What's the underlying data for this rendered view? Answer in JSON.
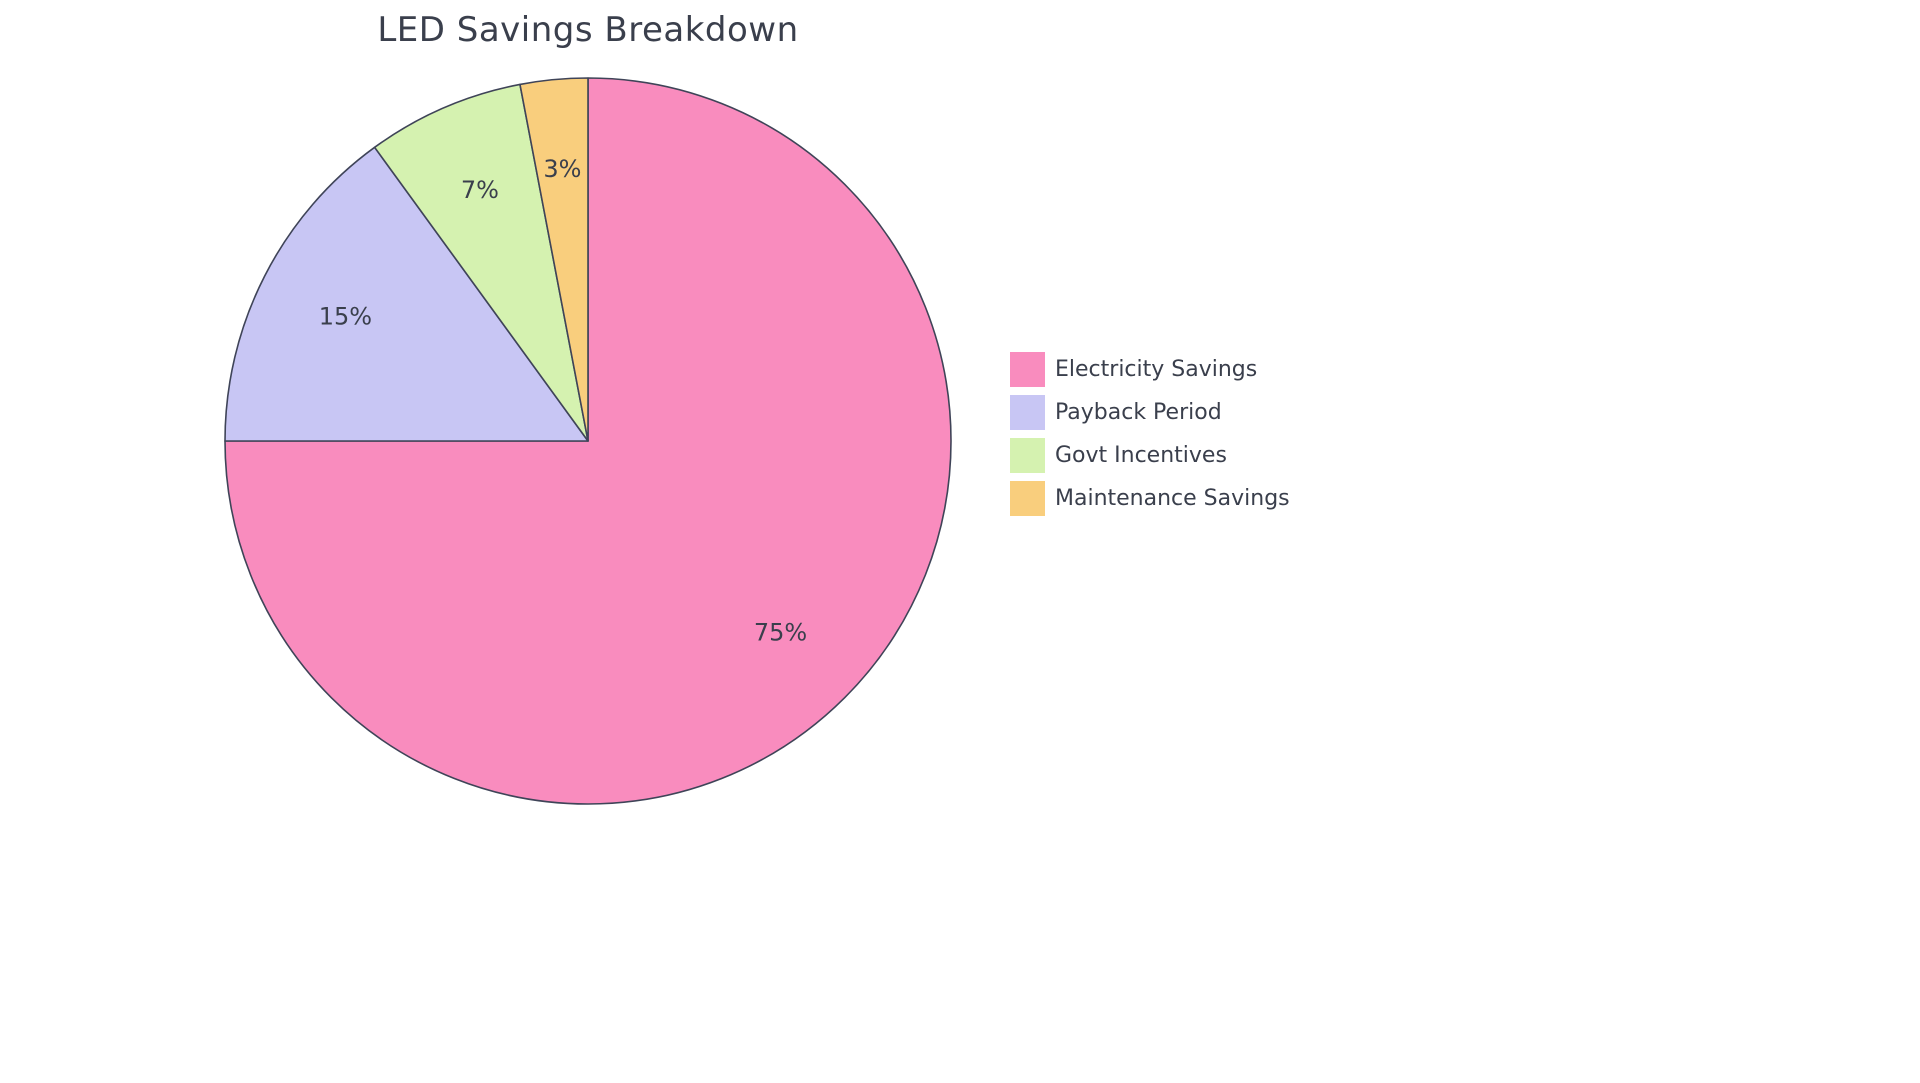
{
  "chart_data": {
    "type": "pie",
    "title": "LED Savings Breakdown",
    "labels": [
      "Electricity Savings",
      "Payback Period",
      "Govt Incentives",
      "Maintenance Savings"
    ],
    "values": [
      75,
      15,
      7,
      3
    ],
    "percent_labels": [
      "75%",
      "15%",
      "7%",
      "3%"
    ],
    "colors": [
      "#F98CBE",
      "#C8C6F4",
      "#D5F2B0",
      "#F9CE7D"
    ],
    "stroke_color": "#3F4458",
    "stroke_width": 1.6,
    "start_angle": "top",
    "direction": "clockwise",
    "label_radius_fraction": 0.75,
    "legend_position": "right",
    "text_color": "#3a3f4c"
  }
}
